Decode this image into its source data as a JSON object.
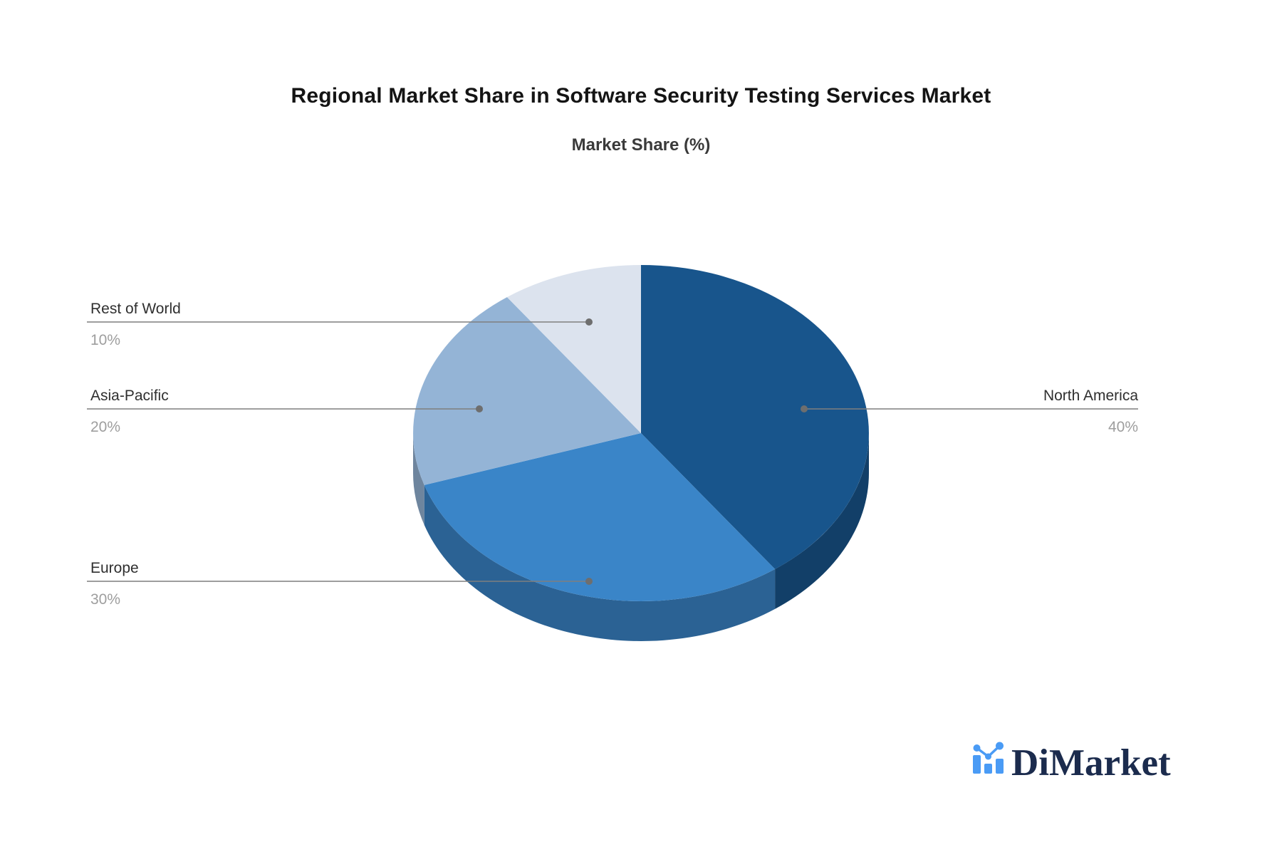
{
  "chart_data": {
    "type": "pie",
    "style": "3d",
    "title": "Regional Market Share in Software Security Testing Services Market",
    "subtitle": "Market Share (%)",
    "unit": "%",
    "start_angle": "top",
    "direction": "clockwise",
    "legend_position": "callout-labels",
    "slices": [
      {
        "label": "North America",
        "value": 40,
        "display": "40%",
        "color": "#18558C"
      },
      {
        "label": "Europe",
        "value": 30,
        "display": "30%",
        "color": "#3A85C8"
      },
      {
        "label": "Asia-Pacific",
        "value": 20,
        "display": "20%",
        "color": "#94B4D6"
      },
      {
        "label": "Rest of World",
        "value": 10,
        "display": "10%",
        "color": "#DCE3EE"
      }
    ],
    "label_color": "#2F2F2F",
    "value_color": "#9E9E9E",
    "callout_line_color": "#7F7F7F"
  },
  "branding": {
    "logo_text": "DiMarket",
    "logo_text_color": "#1B2B4D",
    "logo_icon": "bar-chart-with-trend-dots",
    "logo_icon_color": "#4A9BF5"
  }
}
